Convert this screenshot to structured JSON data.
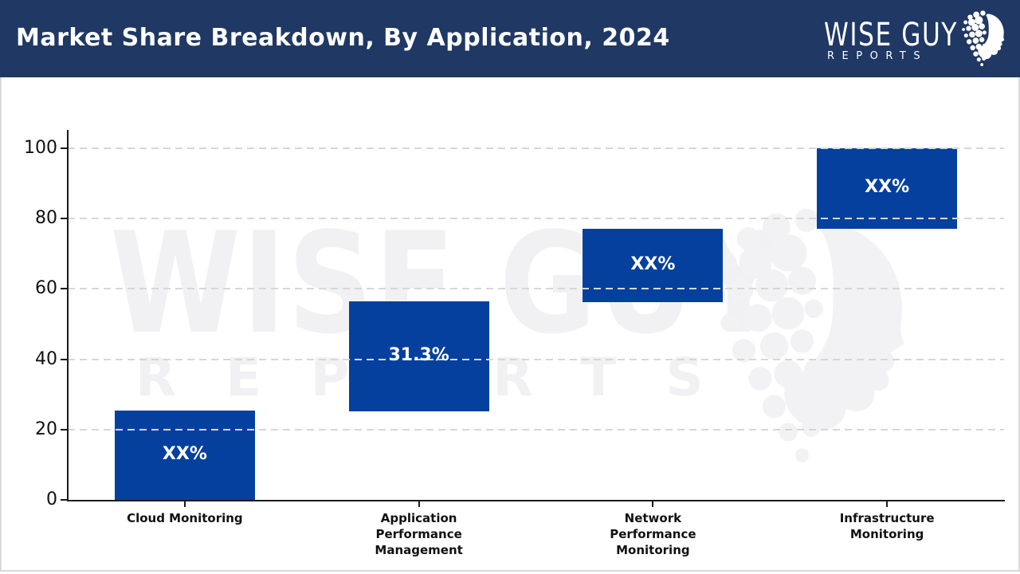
{
  "header": {
    "title": "Market Share Breakdown, By Application, 2024",
    "logo_line1": "WISE GUY",
    "logo_line2": "REPORTS",
    "background": "#1f3864"
  },
  "watermark": {
    "line1": "WISE GUY",
    "line2": "REPORTS"
  },
  "chart_data": {
    "type": "bar",
    "subtype": "waterfall",
    "title": "Market Share Breakdown, By Application, 2024",
    "categories": [
      "Cloud Monitoring",
      "Application\nPerformance\nManagement",
      "Network\nPerformance\nMonitoring",
      "Infrastructure\nMonitoring"
    ],
    "segments": [
      {
        "start": 0,
        "end": 25.3
      },
      {
        "start": 25.2,
        "end": 56.5
      },
      {
        "start": 56.3,
        "end": 77.1
      },
      {
        "start": 77.1,
        "end": 100
      }
    ],
    "bar_labels": [
      "XX%",
      "31.3%",
      "XX%",
      "XX%"
    ],
    "y_ticks": [
      0,
      20,
      40,
      60,
      80,
      100
    ],
    "ylim": [
      0,
      100
    ],
    "xlabel": "",
    "ylabel": "",
    "grid": "dashed-horizontal",
    "legend": "none",
    "bar_color": "#05409e",
    "bar_label_color": "#ffffff",
    "axis_color": "#1a1a1a",
    "grid_color": "#d7d7d7"
  }
}
